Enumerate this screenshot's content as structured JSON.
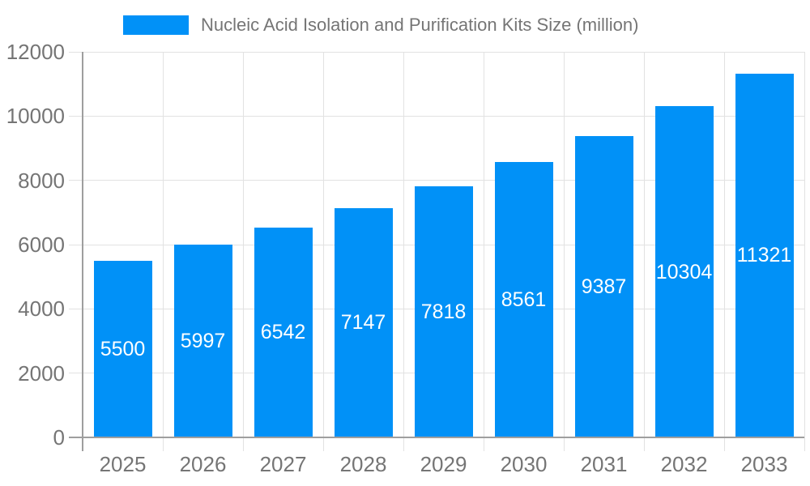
{
  "chart_data": {
    "type": "bar",
    "title": "Nucleic Acid Isolation and Purification Kits Size (million)",
    "categories": [
      "2025",
      "2026",
      "2027",
      "2028",
      "2029",
      "2030",
      "2031",
      "2032",
      "2033"
    ],
    "values": [
      5500,
      5997,
      6542,
      7147,
      7818,
      8561,
      9387,
      10304,
      11321
    ],
    "series": [
      {
        "name": "Nucleic Acid Isolation and Purification Kits Size (million)",
        "values": [
          5500,
          5997,
          6542,
          7147,
          7818,
          8561,
          9387,
          10304,
          11321
        ]
      }
    ],
    "xlabel": "",
    "ylabel": "",
    "ylim": [
      0,
      12000
    ],
    "yticks": [
      0,
      2000,
      4000,
      6000,
      8000,
      10000,
      12000
    ],
    "grid": true,
    "legend_position": "top",
    "bar_color": "#0191f7",
    "value_label_color": "#ffffff",
    "axis_label_color": "#757575",
    "grid_color": "#e2e2e2",
    "axis_line_color": "#9e9e9e"
  }
}
